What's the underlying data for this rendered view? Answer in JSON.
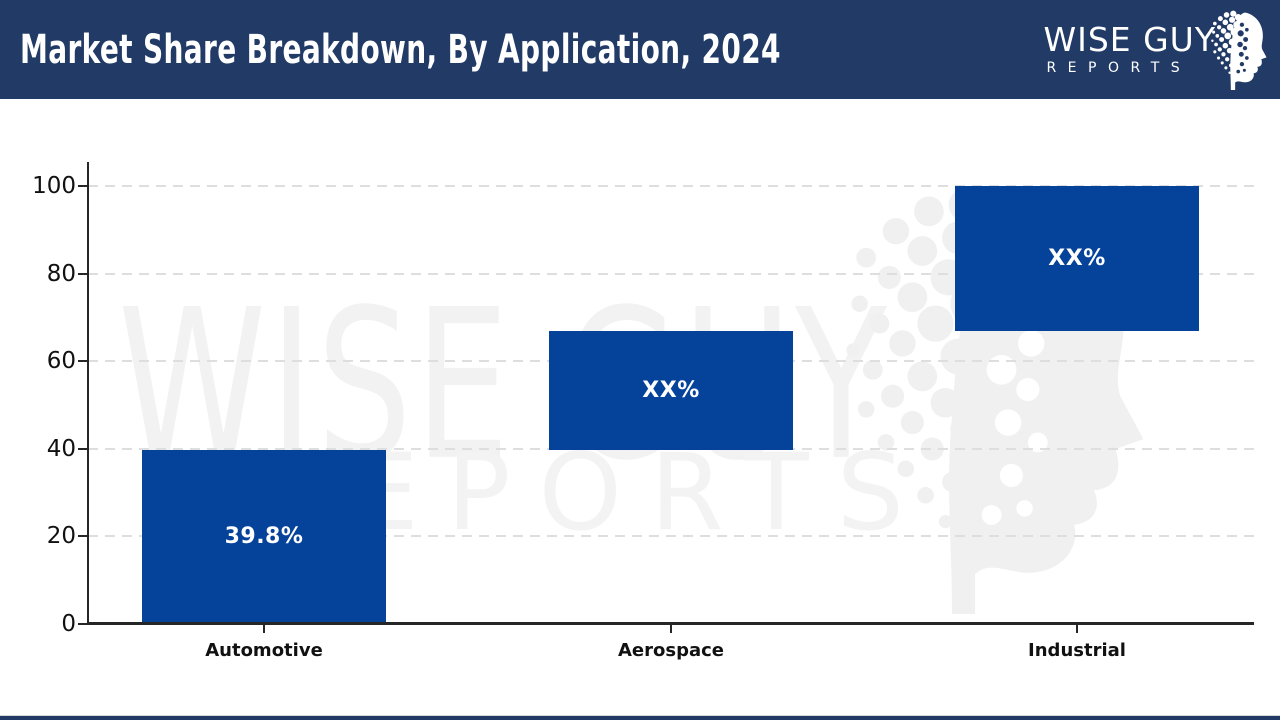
{
  "header": {
    "title": "Market Share Breakdown, By Application, 2024",
    "logo": {
      "line1": "WISE GUY",
      "line2": "REPORTS"
    }
  },
  "watermark": {
    "line1": "WISE GUY",
    "line2": "REPORTS"
  },
  "chart_data": {
    "type": "bar",
    "variant": "floating-waterfall",
    "title": "Market Share Breakdown, By Application, 2024",
    "categories": [
      "Automotive",
      "Aerospace",
      "Industrial"
    ],
    "bars": [
      {
        "category": "Automotive",
        "start": 0,
        "end": 39.8,
        "label": "39.8%"
      },
      {
        "category": "Aerospace",
        "start": 39.8,
        "end": 67,
        "label": "XX%"
      },
      {
        "category": "Industrial",
        "start": 67,
        "end": 100,
        "label": "XX%"
      }
    ],
    "xlabel": "",
    "ylabel": "",
    "ylim": [
      0,
      100
    ],
    "yticks": [
      0,
      20,
      40,
      60,
      80,
      100
    ],
    "grid": {
      "horizontal": true,
      "style": "dashed"
    },
    "legend": "none",
    "bar_color": "#05429A",
    "bar_label_color": "#FFFFFF"
  },
  "colors": {
    "header_bg": "#213A66",
    "footer_bg": "#213A66",
    "bar_blue": "#05429A",
    "axis": "#262626",
    "gridline": "#DEDEDE",
    "watermark_gray": "#F2F2F2",
    "title_text": "#FFFFFF",
    "tick_label_text": "#111111"
  }
}
